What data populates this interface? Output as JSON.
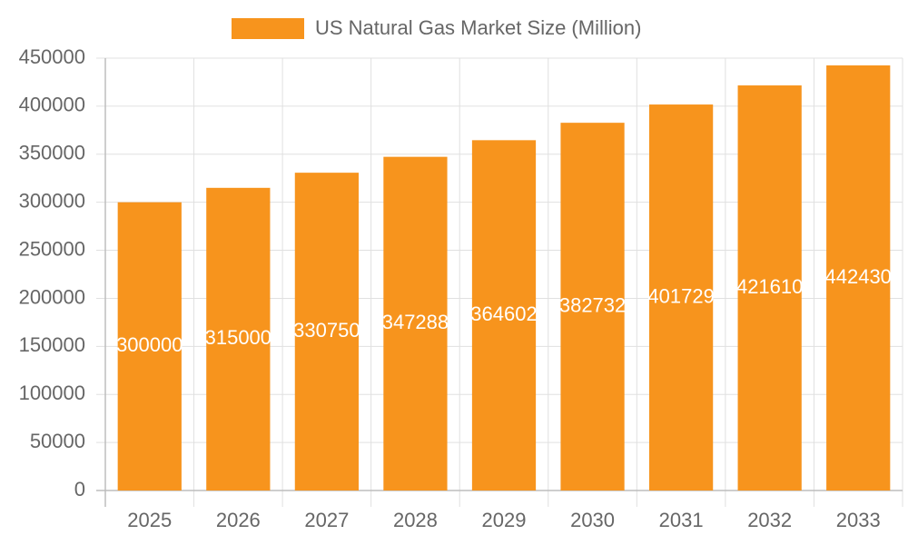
{
  "chart_data": {
    "type": "bar",
    "title": "US Natural Gas Market Size (Million)",
    "categories": [
      "2025",
      "2026",
      "2027",
      "2028",
      "2029",
      "2030",
      "2031",
      "2032",
      "2033"
    ],
    "series": [
      {
        "name": "US Natural Gas Market Size (Million)",
        "color": "#f7941d",
        "values": [
          300000,
          315000,
          330750,
          347288,
          364602,
          382732,
          401729,
          421610,
          442430
        ]
      }
    ],
    "ylim": [
      0,
      450000
    ],
    "yticks": [
      0,
      50000,
      100000,
      150000,
      200000,
      250000,
      300000,
      350000,
      400000,
      450000
    ],
    "grid": true,
    "legend": "top",
    "data_labels": true
  }
}
